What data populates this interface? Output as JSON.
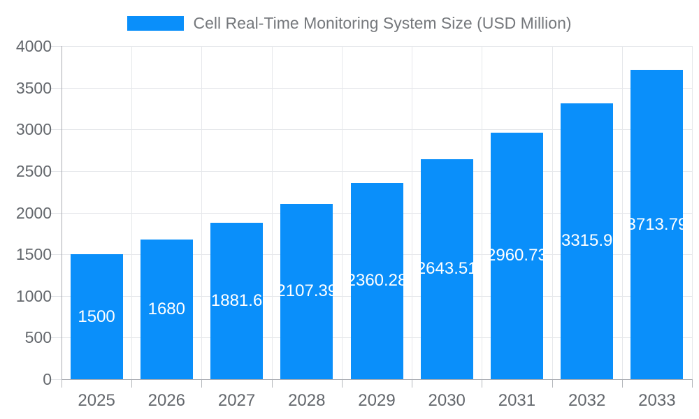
{
  "chart_data": {
    "type": "bar",
    "title": "Cell Real-Time Monitoring System Size (USD Million)",
    "categories": [
      "2025",
      "2026",
      "2027",
      "2028",
      "2029",
      "2030",
      "2031",
      "2032",
      "2033"
    ],
    "values": [
      1500,
      1680,
      1881.6,
      2107.39,
      2360.28,
      2643.51,
      2960.73,
      3315.9,
      3713.79
    ],
    "labels": [
      "1500",
      "1680",
      "1881.6",
      "2107.39",
      "2360.28",
      "2643.51",
      "2960.73",
      "3315.9",
      "3713.79"
    ],
    "yticks": [
      0,
      500,
      1000,
      1500,
      2000,
      2500,
      3000,
      3500,
      4000
    ],
    "ylim": [
      0,
      4000
    ],
    "xlabel": "",
    "ylabel": "",
    "grid": true,
    "legend_position": "top-center",
    "bar_color": "#0a8ffa"
  }
}
